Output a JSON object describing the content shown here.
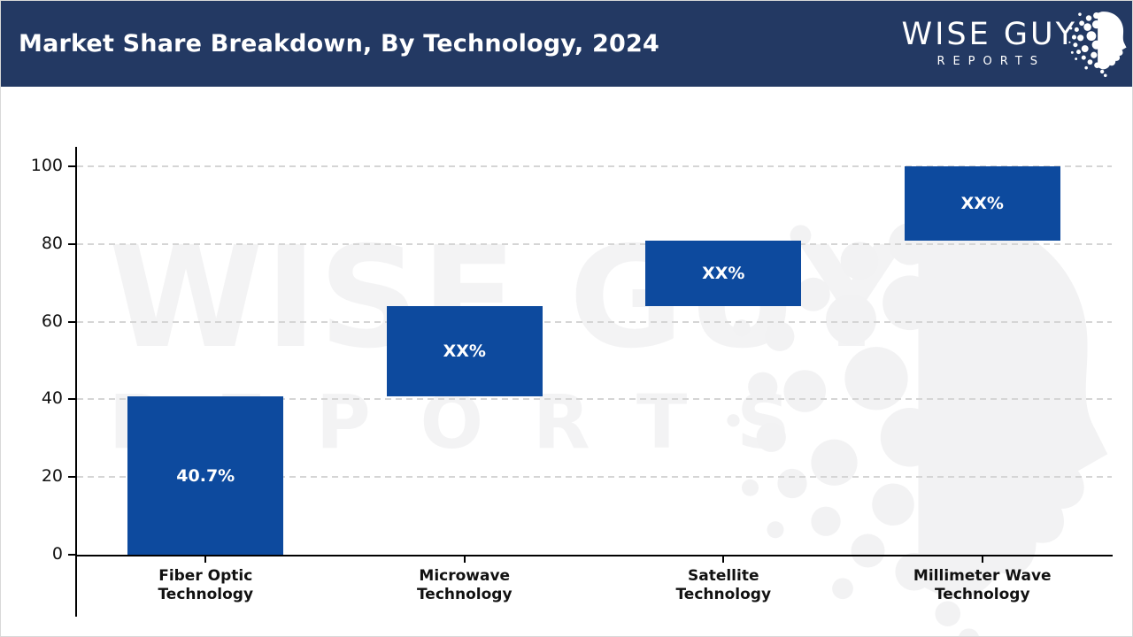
{
  "header": {
    "title": "Market Share Breakdown, By Technology, 2024",
    "brand": {
      "line1": "WISE GUY",
      "line2": "REPORTS"
    }
  },
  "watermark": {
    "line1": "WISE GUY",
    "line2": "REPORTS"
  },
  "colors": {
    "header_bg": "#233963",
    "bar": "#0d4a9e",
    "gridline": "#d5d5d5",
    "watermark": "#f3f3f4",
    "axis": "#000000",
    "text_on_bar": "#ffffff"
  },
  "chart_data": {
    "type": "bar",
    "subtype": "waterfall",
    "title": "Market Share Breakdown, By Technology, 2024",
    "categories": [
      "Fiber Optic Technology",
      "Microwave Technology",
      "Satellite Technology",
      "Millimeter Wave Technology"
    ],
    "segments": [
      {
        "category_lines": [
          "Fiber Optic",
          "Technology"
        ],
        "start": 0,
        "end": 40.7,
        "value_label": "40.7%"
      },
      {
        "category_lines": [
          "Microwave",
          "Technology"
        ],
        "start": 40.7,
        "end": 64.1,
        "value_label": "XX%"
      },
      {
        "category_lines": [
          "Satellite",
          "Technology"
        ],
        "start": 64.1,
        "end": 80.9,
        "value_label": "XX%"
      },
      {
        "category_lines": [
          "Millimeter Wave",
          "Technology"
        ],
        "start": 80.9,
        "end": 100,
        "value_label": "XX%"
      }
    ],
    "ylim": [
      0,
      100
    ],
    "yticks": [
      0,
      20,
      40,
      60,
      80,
      100
    ],
    "xlabel": "",
    "ylabel": "",
    "grid": "dashed-horizontal",
    "legend": "none"
  }
}
